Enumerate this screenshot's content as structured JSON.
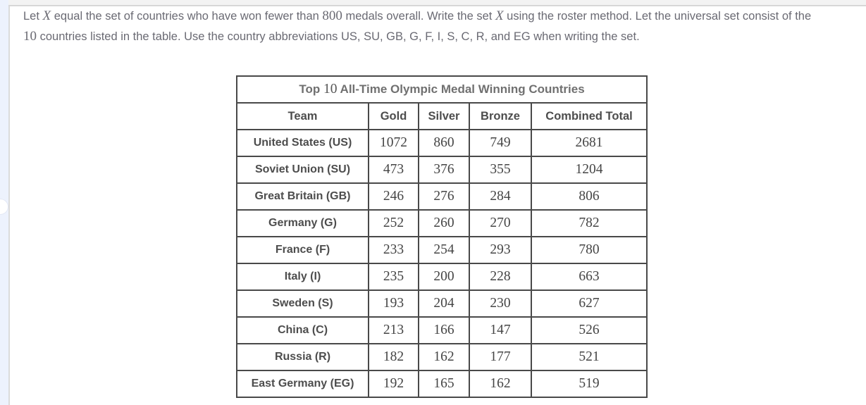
{
  "colors": {
    "sidebar_strip": "#edf2fd",
    "top_strip": "#f3f3f3",
    "chrome_divider": "#dbdbdb",
    "table_border": "#494949",
    "body_text": "#6a6a73",
    "table_text": "#4d4d4d"
  },
  "question": {
    "segments": [
      {
        "text": "Let ",
        "style": "sans"
      },
      {
        "text": "X",
        "style": "math-italic"
      },
      {
        "text": " equal the set of countries who have won fewer than ",
        "style": "sans"
      },
      {
        "text": "800",
        "style": "math"
      },
      {
        "text": " medals overall. Write the set ",
        "style": "sans"
      },
      {
        "text": "X",
        "style": "math-italic"
      },
      {
        "text": " using the roster method. Let the universal set consist of the ",
        "style": "sans"
      },
      {
        "text": "10",
        "style": "math"
      },
      {
        "text": " countries listed in the table. Use the country abbreviations US, SU, GB, G, F, I, S, C, R, and EG when writing the set.",
        "style": "sans"
      }
    ]
  },
  "table": {
    "title_segments": [
      {
        "text": "Top ",
        "style": "sans"
      },
      {
        "text": "10",
        "style": "math"
      },
      {
        "text": " All-Time Olympic Medal Winning Countries",
        "style": "sans"
      }
    ],
    "columns": [
      "Team",
      "Gold",
      "Silver",
      "Bronze",
      "Combined Total"
    ],
    "rows": [
      {
        "team": "United States (US)",
        "gold": "1072",
        "silver": "860",
        "bronze": "749",
        "total": "2681"
      },
      {
        "team": "Soviet Union (SU)",
        "gold": "473",
        "silver": "376",
        "bronze": "355",
        "total": "1204"
      },
      {
        "team": "Great Britain (GB)",
        "gold": "246",
        "silver": "276",
        "bronze": "284",
        "total": "806"
      },
      {
        "team": "Germany (G)",
        "gold": "252",
        "silver": "260",
        "bronze": "270",
        "total": "782"
      },
      {
        "team": "France (F)",
        "gold": "233",
        "silver": "254",
        "bronze": "293",
        "total": "780"
      },
      {
        "team": "Italy (I)",
        "gold": "235",
        "silver": "200",
        "bronze": "228",
        "total": "663"
      },
      {
        "team": "Sweden (S)",
        "gold": "193",
        "silver": "204",
        "bronze": "230",
        "total": "627"
      },
      {
        "team": "China (C)",
        "gold": "213",
        "silver": "166",
        "bronze": "147",
        "total": "526"
      },
      {
        "team": "Russia (R)",
        "gold": "182",
        "silver": "162",
        "bronze": "177",
        "total": "521"
      },
      {
        "team": "East Germany (EG)",
        "gold": "192",
        "silver": "165",
        "bronze": "162",
        "total": "519"
      }
    ]
  }
}
